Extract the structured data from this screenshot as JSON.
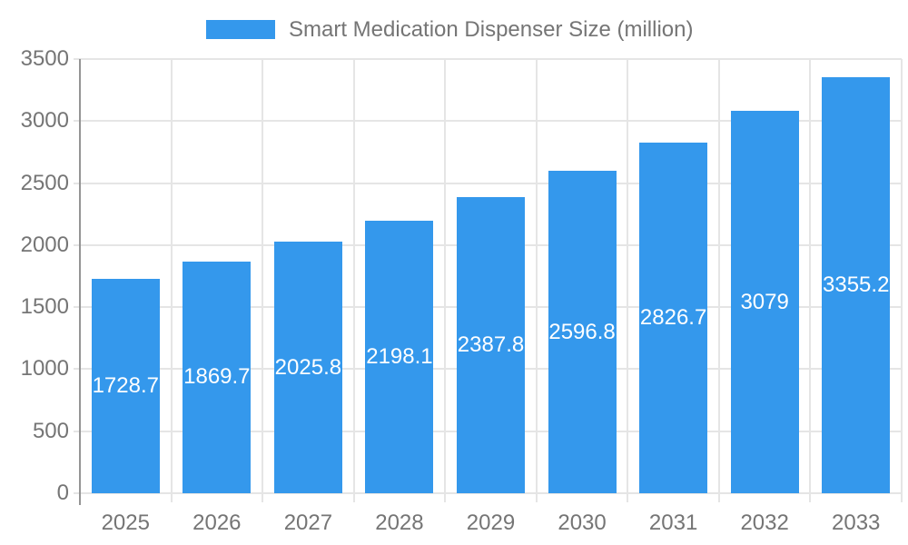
{
  "legend": {
    "label": "Smart Medication Dispenser Size (million)"
  },
  "chart_data": {
    "type": "bar",
    "title": "Smart Medication Dispenser Size (million)",
    "legend_position": "top",
    "grid": true,
    "categories": [
      "2025",
      "2026",
      "2027",
      "2028",
      "2029",
      "2030",
      "2031",
      "2032",
      "2033"
    ],
    "series": [
      {
        "name": "Smart Medication Dispenser Size (million)",
        "values": [
          1728.7,
          1869.7,
          2025.8,
          2198.1,
          2387.8,
          2596.8,
          2826.7,
          3079,
          3355.2
        ],
        "value_labels": [
          "1728.7",
          "1869.7",
          "2025.8",
          "2198.1",
          "2387.8",
          "2596.8",
          "2826.7",
          "3079",
          "3355.2"
        ]
      }
    ],
    "xlabel": "",
    "ylabel": "",
    "ylim": [
      0,
      3500
    ],
    "yticks": [
      0,
      500,
      1000,
      1500,
      2000,
      2500,
      3000,
      3500
    ],
    "colors": {
      "bar": "#3498EC",
      "grid": "#E5E5E5",
      "axis": "#949494",
      "tick_label": "#757575",
      "value_label": "#FFFFFF",
      "background": "#FFFFFF"
    }
  }
}
